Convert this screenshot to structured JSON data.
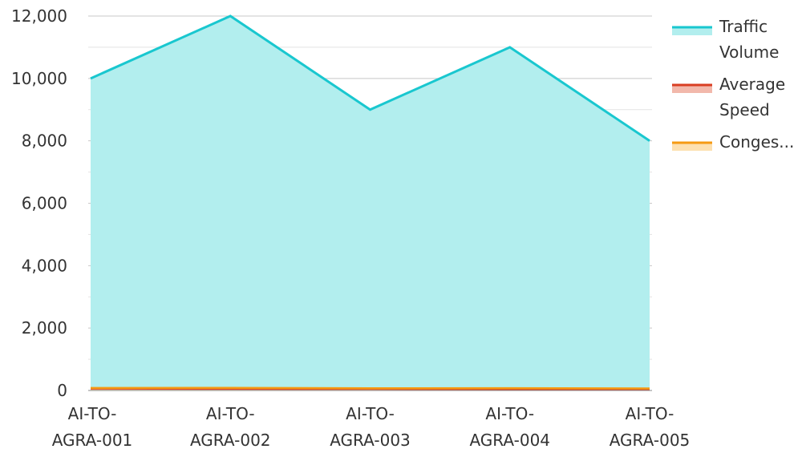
{
  "chart_data": {
    "type": "area",
    "categories": [
      [
        "AI-TO-",
        "AGRA-001"
      ],
      [
        "AI-TO-",
        "AGRA-002"
      ],
      [
        "AI-TO-",
        "AGRA-003"
      ],
      [
        "AI-TO-",
        "AGRA-004"
      ],
      [
        "AI-TO-",
        "AGRA-005"
      ]
    ],
    "series": [
      {
        "name": "Traffic Volume",
        "legend_lines": [
          "Traffic",
          "Volume"
        ],
        "values": [
          10000,
          12000,
          9000,
          11000,
          8000
        ],
        "line_color": "#19c7cf",
        "fill_color": "#b2eeee"
      },
      {
        "name": "Average Speed",
        "legend_lines": [
          "Average",
          "Speed"
        ],
        "values": [
          60,
          55,
          50,
          45,
          40
        ],
        "line_color": "#d93e22",
        "fill_color": "#f2b8ab"
      },
      {
        "name": "Congestion",
        "legend_lines": [
          "Conges..."
        ],
        "values": [
          80,
          85,
          70,
          75,
          65
        ],
        "line_color": "#f59a12",
        "fill_color": "#fde0b0"
      }
    ],
    "y_ticks": [
      "0",
      "2,000",
      "4,000",
      "6,000",
      "8,000",
      "10,000",
      "12,000"
    ],
    "ylim": [
      0,
      12000
    ],
    "grid": true,
    "legend_position": "right"
  }
}
